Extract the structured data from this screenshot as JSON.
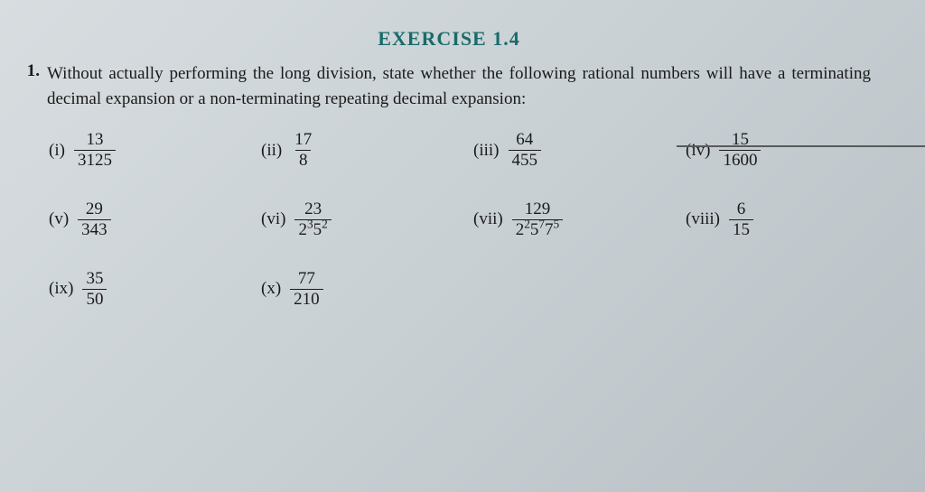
{
  "title": "EXERCISE 1.4",
  "question": {
    "number": "1.",
    "text": "Without actually performing the long division, state whether the following rational numbers will have a terminating decimal expansion or a non-terminating repeating decimal expansion:"
  },
  "items": [
    {
      "label": "(i)",
      "num": "13",
      "den": "3125"
    },
    {
      "label": "(ii)",
      "num": "17",
      "den": "8"
    },
    {
      "label": "(iii)",
      "num": "64",
      "den": "455"
    },
    {
      "label": "(iv)",
      "num": "15",
      "den": "1600"
    },
    {
      "label": "(v)",
      "num": "29",
      "den": "343"
    },
    {
      "label": "(vi)",
      "num": "23",
      "den_html": "2<sup>3</sup>5<sup>2</sup>"
    },
    {
      "label": "(vii)",
      "num": "129",
      "den_html": "2<sup>2</sup>5<sup>7</sup>7<sup>5</sup>"
    },
    {
      "label": "(viii)",
      "num": "6",
      "den": "15"
    },
    {
      "label": "(ix)",
      "num": "35",
      "den": "50"
    },
    {
      "label": "(x)",
      "num": "77",
      "den": "210"
    }
  ]
}
